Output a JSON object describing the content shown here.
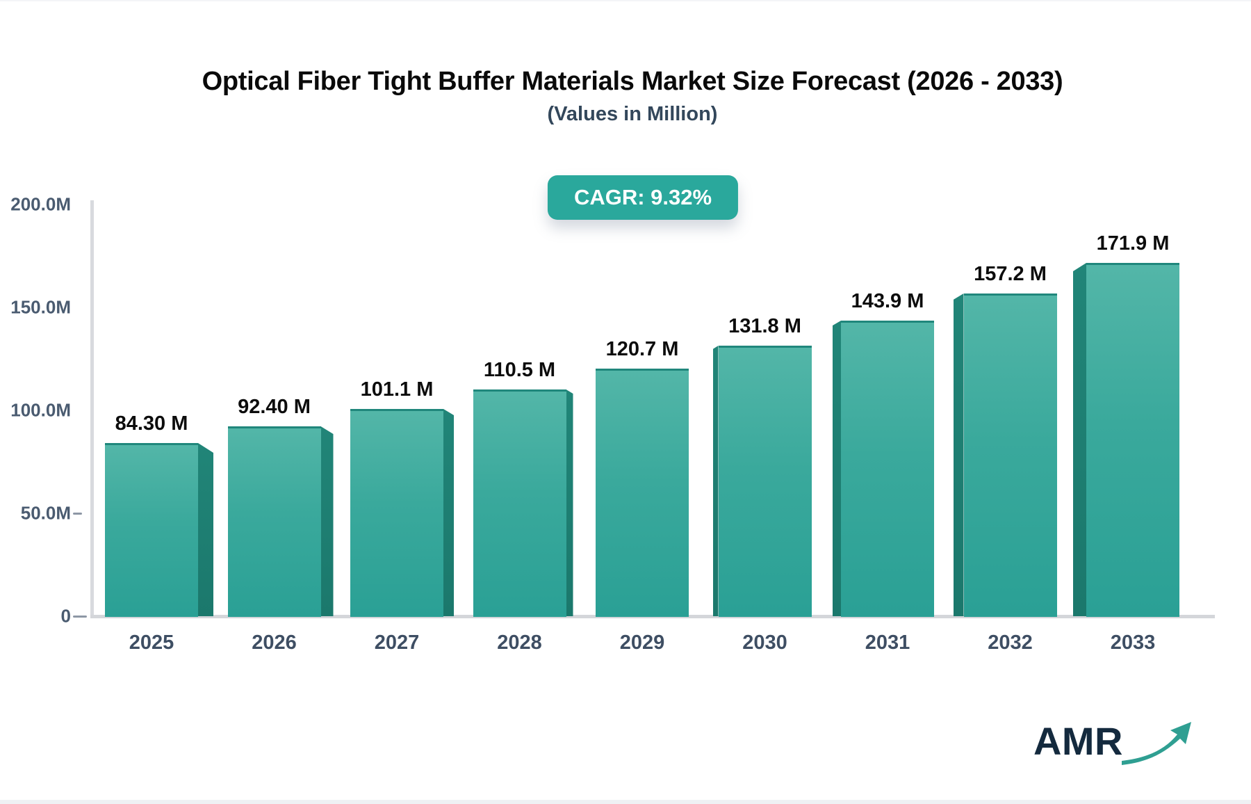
{
  "header": {
    "title": "Optical Fiber Tight Buffer Materials Market Size Forecast (2026 - 2033)",
    "subtitle": "(Values in Million)"
  },
  "badge": {
    "label": "CAGR: 9.32%",
    "bg_color": "#2aa89c",
    "text_color": "#ffffff"
  },
  "logo": {
    "text": "AMR",
    "text_color": "#142a3e",
    "arrow_color": "#2f9f92"
  },
  "chart_data": {
    "type": "bar",
    "title": "Optical Fiber Tight Buffer Materials Market Size Forecast (2026 - 2033)",
    "subtitle": "(Values in Million)",
    "cagr_annotation": "CAGR: 9.32%",
    "categories": [
      "2025",
      "2026",
      "2027",
      "2028",
      "2029",
      "2030",
      "2031",
      "2032",
      "2033"
    ],
    "values": [
      84.3,
      92.4,
      101.1,
      110.5,
      120.7,
      131.8,
      143.9,
      157.2,
      171.9
    ],
    "value_labels": [
      "84.30 M",
      "92.40 M",
      "101.1 M",
      "110.5 M",
      "120.7 M",
      "131.8 M",
      "143.9 M",
      "157.2 M",
      "171.9 M"
    ],
    "xlabel": "",
    "ylabel": "",
    "ylim": [
      0,
      200
    ],
    "yticks": [
      {
        "value": 200,
        "label": "200.0M"
      },
      {
        "value": 150,
        "label": "150.0M"
      },
      {
        "value": 100,
        "label": "100.0M"
      },
      {
        "value": 50,
        "label": "50.0M"
      },
      {
        "value": 0,
        "label": "0"
      }
    ],
    "grid": false,
    "legend_position": "none",
    "bar_style": "3d",
    "colors": {
      "bar_front_top": "#53b6a8",
      "bar_front_bottom": "#2aa095",
      "bar_side": "#1e8174",
      "axis_line": "#d6d8dc",
      "tick_label": "#4a5b70",
      "category_label": "#3e4e63",
      "value_label": "#0c0c0c"
    }
  }
}
